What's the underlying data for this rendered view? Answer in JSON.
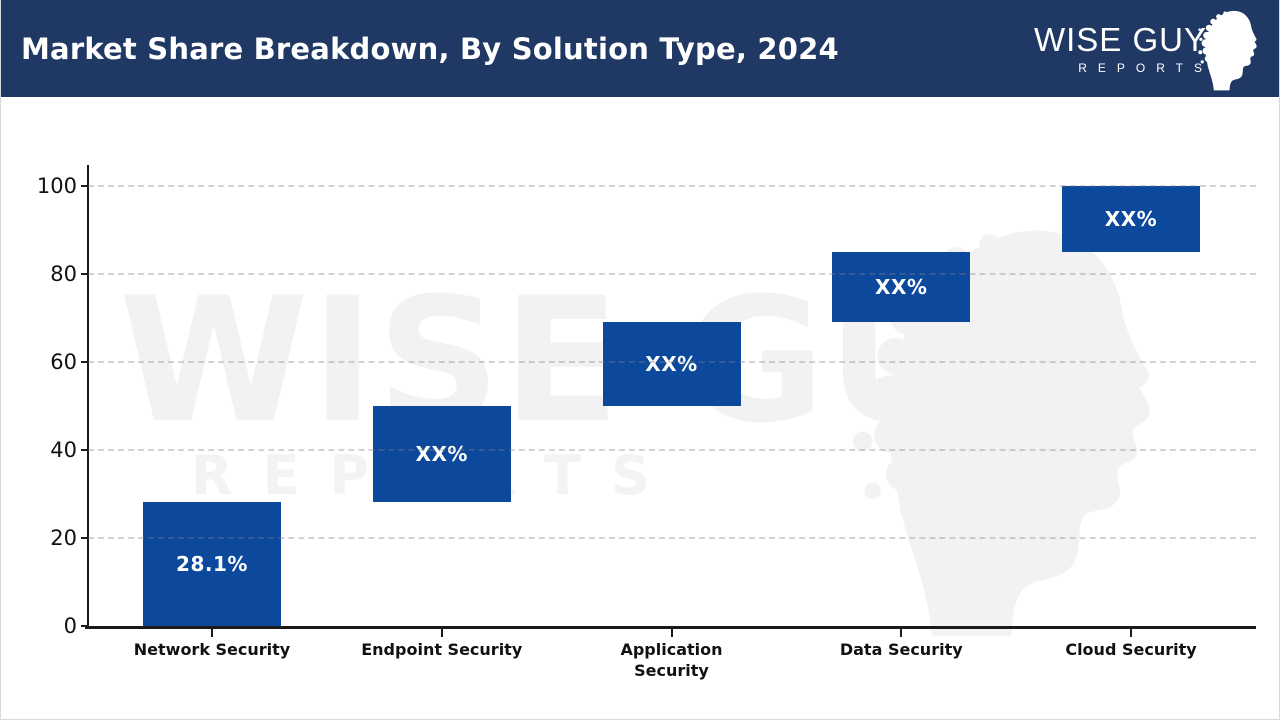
{
  "header": {
    "title": "Market Share Breakdown, By Solution Type, 2024",
    "background": "#1f3864",
    "logo": {
      "name_line": "WISE GUY",
      "sub_line": "REPORTS"
    }
  },
  "watermark": {
    "line1": "WISE GUY",
    "line2": "REPORTS"
  },
  "chart_data": {
    "type": "bar",
    "subtype": "waterfall",
    "title": "Market Share Breakdown, By Solution Type, 2024",
    "xlabel": "",
    "ylabel": "",
    "ylim": [
      0,
      105
    ],
    "yticks": [
      0,
      20,
      40,
      60,
      80,
      100
    ],
    "grid": "horizontal-dashed",
    "legend": "none",
    "bar_color": "#0c499c",
    "bar_label_color": "#ffffff",
    "categories": [
      "Network Security",
      "Endpoint Security",
      "Application Security",
      "Data Security",
      "Cloud Security"
    ],
    "segments": [
      {
        "category": "Network Security",
        "start": 0,
        "end": 28.1,
        "label": "28.1%"
      },
      {
        "category": "Endpoint Security",
        "start": 28.1,
        "end": 50,
        "label": "XX%"
      },
      {
        "category": "Application Security",
        "start": 50,
        "end": 69,
        "label": "XX%"
      },
      {
        "category": "Data Security",
        "start": 69,
        "end": 85,
        "label": "XX%"
      },
      {
        "category": "Cloud Security",
        "start": 85,
        "end": 100,
        "label": "XX%"
      }
    ]
  }
}
